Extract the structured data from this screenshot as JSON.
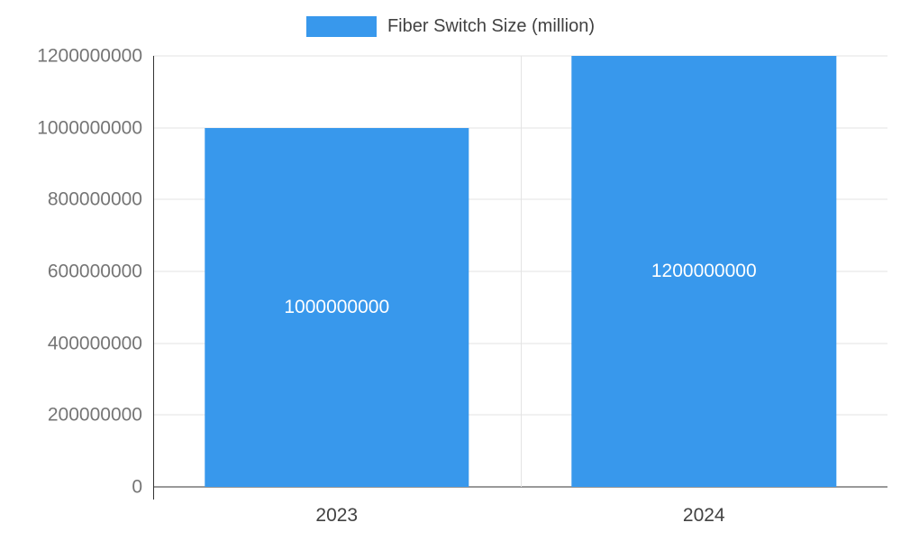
{
  "chart_data": {
    "type": "bar",
    "title": "Fiber Switch Size (million)",
    "categories": [
      "2023",
      "2024"
    ],
    "values": [
      1000000000,
      1200000000
    ],
    "value_labels": [
      "1000000000",
      "1200000000"
    ],
    "ylim": [
      0,
      1200000000
    ],
    "yticks": [
      0,
      200000000,
      400000000,
      600000000,
      800000000,
      1000000000,
      1200000000
    ],
    "ytick_labels": [
      "0",
      "200000000",
      "400000000",
      "600000000",
      "800000000",
      "1000000000",
      "1200000000"
    ],
    "grid": true,
    "legend_position": "top",
    "colors": {
      "bar": "#3898EC",
      "value_label": "#ffffff",
      "axis": "#333333",
      "gridline": "#e3e3e3",
      "ytick_text": "#757575",
      "xtick_text": "#424242",
      "legend_text": "#424242"
    }
  }
}
